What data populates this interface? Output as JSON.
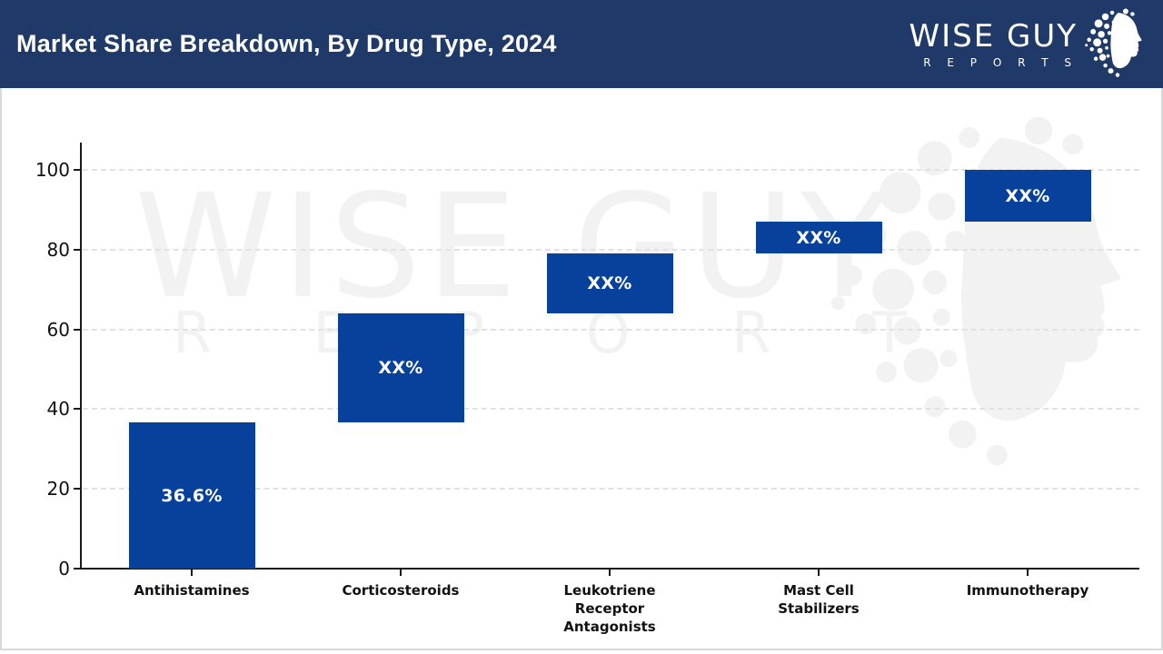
{
  "header": {
    "title": "Market Share Breakdown, By Drug Type, 2024",
    "logo": {
      "name": "WISE GUY",
      "sub": "R E P O R T S"
    }
  },
  "watermark": {
    "line1": "WISE GUY",
    "line2": "R E P O R T S"
  },
  "chart_data": {
    "type": "bar",
    "subtype": "waterfall",
    "title": "Market Share Breakdown, By Drug Type, 2024",
    "xlabel": "",
    "ylabel": "",
    "ylim": [
      0,
      107
    ],
    "yticks": [
      0,
      20,
      40,
      60,
      80,
      100
    ],
    "grid": "horizontal-dashed",
    "legend": "none",
    "bar_color": "#08419c",
    "bar_label_color": "#ffffff",
    "categories": [
      "Antihistamines",
      "Corticosteroids",
      "Leukotriene\nReceptor\nAntagonists",
      "Mast Cell\nStabilizers",
      "Immunotherapy"
    ],
    "segments": [
      {
        "category": "Antihistamines",
        "start": 0,
        "end": 36.6,
        "label": "36.6%"
      },
      {
        "category": "Corticosteroids",
        "start": 36.6,
        "end": 64,
        "label": "XX%"
      },
      {
        "category": "Leukotriene Receptor Antagonists",
        "start": 64,
        "end": 79,
        "label": "XX%"
      },
      {
        "category": "Mast Cell Stabilizers",
        "start": 79,
        "end": 87,
        "label": "XX%"
      },
      {
        "category": "Immunotherapy",
        "start": 87,
        "end": 100,
        "label": "XX%"
      }
    ]
  },
  "colors": {
    "header_bg": "#1f3a68",
    "bar": "#08419c",
    "axis": "#1a1a1a",
    "grid": "#e2e2e2",
    "card_border": "#d9d9d9",
    "watermark": "#f2f2f2"
  }
}
